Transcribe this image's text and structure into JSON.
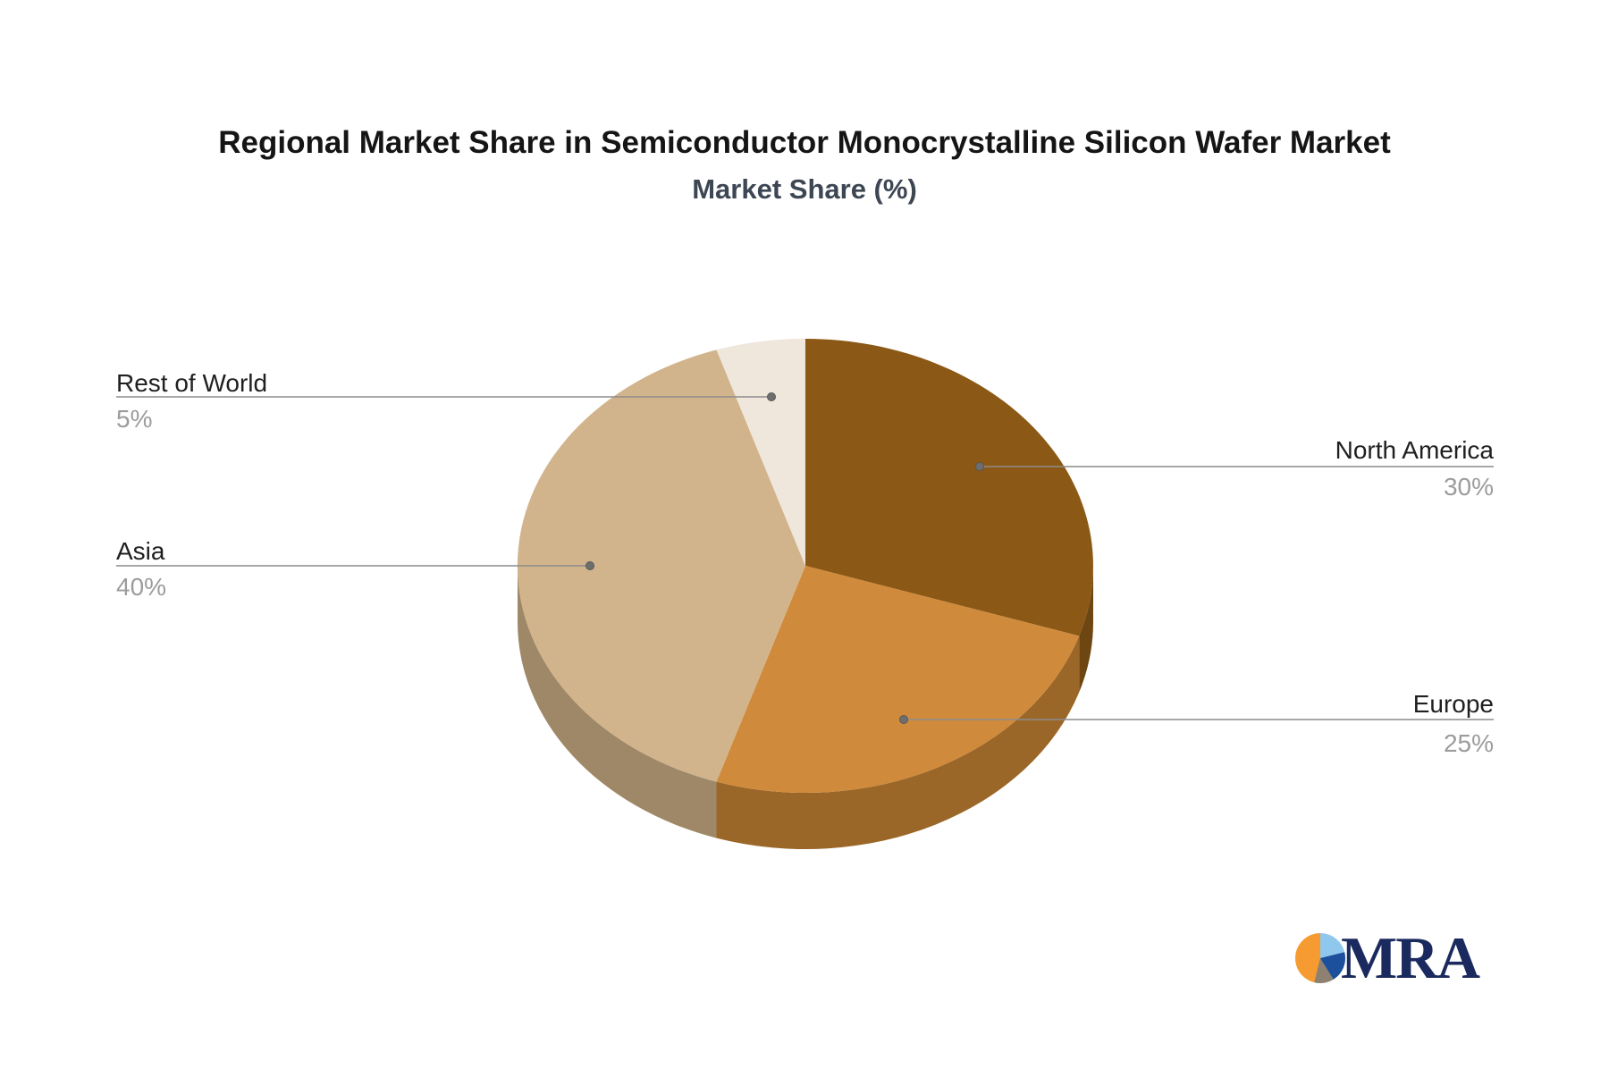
{
  "title": "Regional Market Share in Semiconductor Monocrystalline Silicon Wafer Market",
  "subtitle": "Market Share (%)",
  "chart_data": {
    "type": "pie",
    "style": "3d-depth",
    "unit": "%",
    "start_angle": "12-oclock-clockwise",
    "title": "Regional Market Share in Semiconductor Monocrystalline Silicon Wafer Market",
    "subtitle": "Market Share (%)",
    "legend": "none",
    "slices": [
      {
        "label": "North America",
        "value": 30,
        "pct_text": "30%",
        "color": "#8B5915",
        "side_color": "#6D4611",
        "label_side": "right"
      },
      {
        "label": "Europe",
        "value": 25,
        "pct_text": "25%",
        "color": "#D08A3C",
        "side_color": "#9B6728",
        "label_side": "right"
      },
      {
        "label": "Asia",
        "value": 40,
        "pct_text": "40%",
        "color": "#D2B48C",
        "side_color": "#9F8867",
        "label_side": "left"
      },
      {
        "label": "Rest of World",
        "value": 5,
        "pct_text": "5%",
        "color": "#EFE6DC",
        "side_color": "#B5ADA3",
        "label_side": "left"
      }
    ],
    "leader_line_color": "#8C8C8C",
    "leader_dot_color": "#6E6E6E",
    "label_name_color": "#202020",
    "label_pct_color": "#9C9C9C"
  },
  "logo": {
    "text": "MRA",
    "icon": "pie-chart-icon",
    "icon_colors": {
      "orange": "#F59B31",
      "light_blue": "#8FC8EC",
      "dark_blue": "#1C4F9C",
      "gray": "#8D8272"
    },
    "text_color": "#1B2A5E"
  }
}
